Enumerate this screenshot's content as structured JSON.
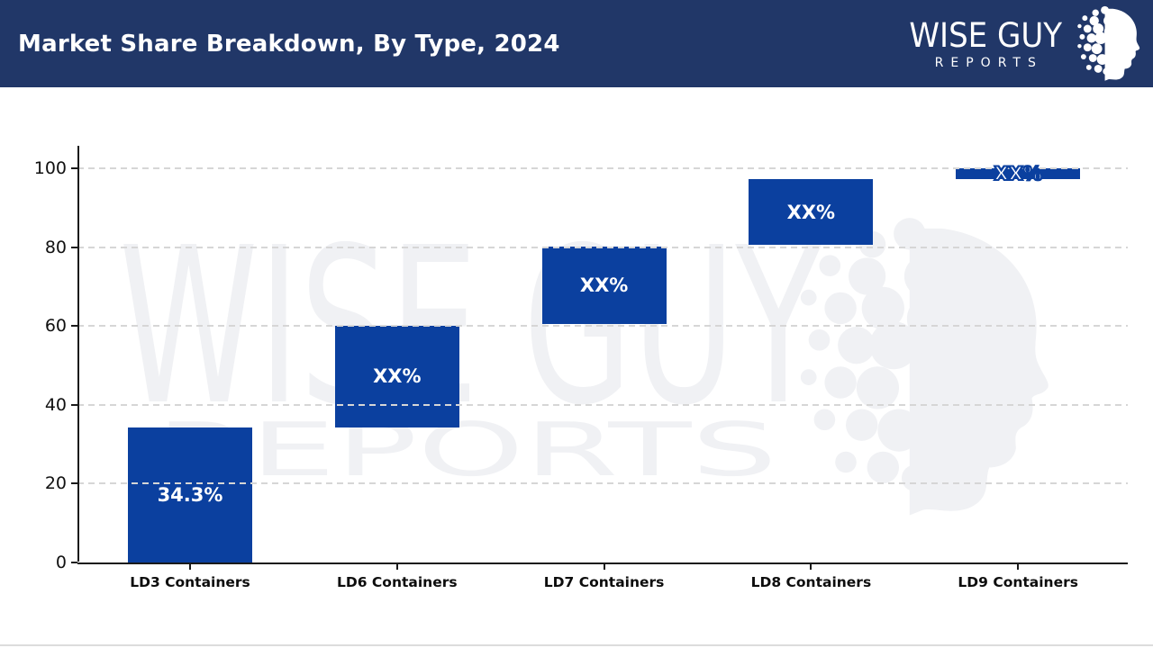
{
  "header": {
    "title": "Market Share Breakdown, By Type, 2024"
  },
  "logo": {
    "brand_line1": "WISE GUY",
    "brand_line2": "REPORTS"
  },
  "watermark": {
    "line1": "WISE GUY",
    "line2": "REPORTS"
  },
  "colors": {
    "header_bg": "#213768",
    "bar": "#0B409F",
    "grid": "#D6D6D6",
    "watermark": "#F0F1F4"
  },
  "chart_data": {
    "type": "bar",
    "variant": "waterfall",
    "title": "Market Share Breakdown, By Type, 2024",
    "categories": [
      "LD3 Containers",
      "LD6 Containers",
      "LD7 Containers",
      "LD8 Containers",
      "LD9 Containers"
    ],
    "segments": [
      {
        "category": "LD3 Containers",
        "start": 0,
        "end": 34.3,
        "label": "34.3%"
      },
      {
        "category": "LD6 Containers",
        "start": 34.3,
        "end": 60.1,
        "label": "XX%"
      },
      {
        "category": "LD7 Containers",
        "start": 60.5,
        "end": 80.3,
        "label": "XX%"
      },
      {
        "category": "LD8 Containers",
        "start": 80.6,
        "end": 97.4,
        "label": "XX%"
      },
      {
        "category": "LD9 Containers",
        "start": 97.4,
        "end": 100.1,
        "label": "XX%"
      }
    ],
    "yticks": [
      0,
      20,
      40,
      60,
      80,
      100
    ],
    "ylim": [
      0,
      105.8
    ],
    "xlabel": "",
    "ylabel": "",
    "grid": "dashed-horizontal",
    "legend": "none",
    "value_labels_inside_bars": true
  }
}
